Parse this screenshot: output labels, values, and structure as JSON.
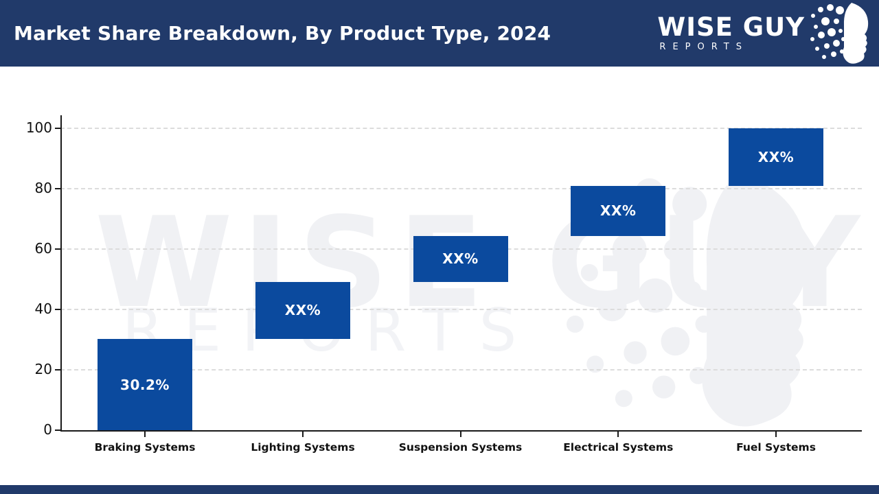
{
  "header": {
    "title": "Market Share Breakdown, By Product Type, 2024",
    "logo": {
      "name": "WISE GUY",
      "sub": "REPORTS"
    }
  },
  "watermark": {
    "name": "WISE GUY",
    "sub": "REPORTS"
  },
  "colors": {
    "header_bg": "#213a6a",
    "footer_bg": "#213a6a",
    "bar": "#0b4a9e",
    "grid": "#dcdcdc",
    "axis": "#1a1a1a",
    "bar_label": "#ffffff"
  },
  "chart_data": {
    "type": "bar",
    "subtype": "waterfall",
    "title": "Market Share Breakdown, By Product Type, 2024",
    "xlabel": "",
    "ylabel": "",
    "ylim": [
      0,
      100
    ],
    "yticks": [
      0,
      20,
      40,
      60,
      80,
      100
    ],
    "grid": "horizontal dashed",
    "legend": "none",
    "categories": [
      "Braking Systems",
      "Lighting Systems",
      "Suspension Systems",
      "Electrical Systems",
      "Fuel Systems"
    ],
    "bars": [
      {
        "category": "Braking Systems",
        "start": 0,
        "end": 30.2,
        "label": "30.2%"
      },
      {
        "category": "Lighting Systems",
        "start": 30.2,
        "end": 49.2,
        "label": "XX%"
      },
      {
        "category": "Suspension Systems",
        "start": 49.2,
        "end": 64.4,
        "label": "XX%"
      },
      {
        "category": "Electrical Systems",
        "start": 64.4,
        "end": 81.0,
        "label": "XX%"
      },
      {
        "category": "Fuel Systems",
        "start": 81.0,
        "end": 100,
        "label": "XX%"
      }
    ]
  }
}
